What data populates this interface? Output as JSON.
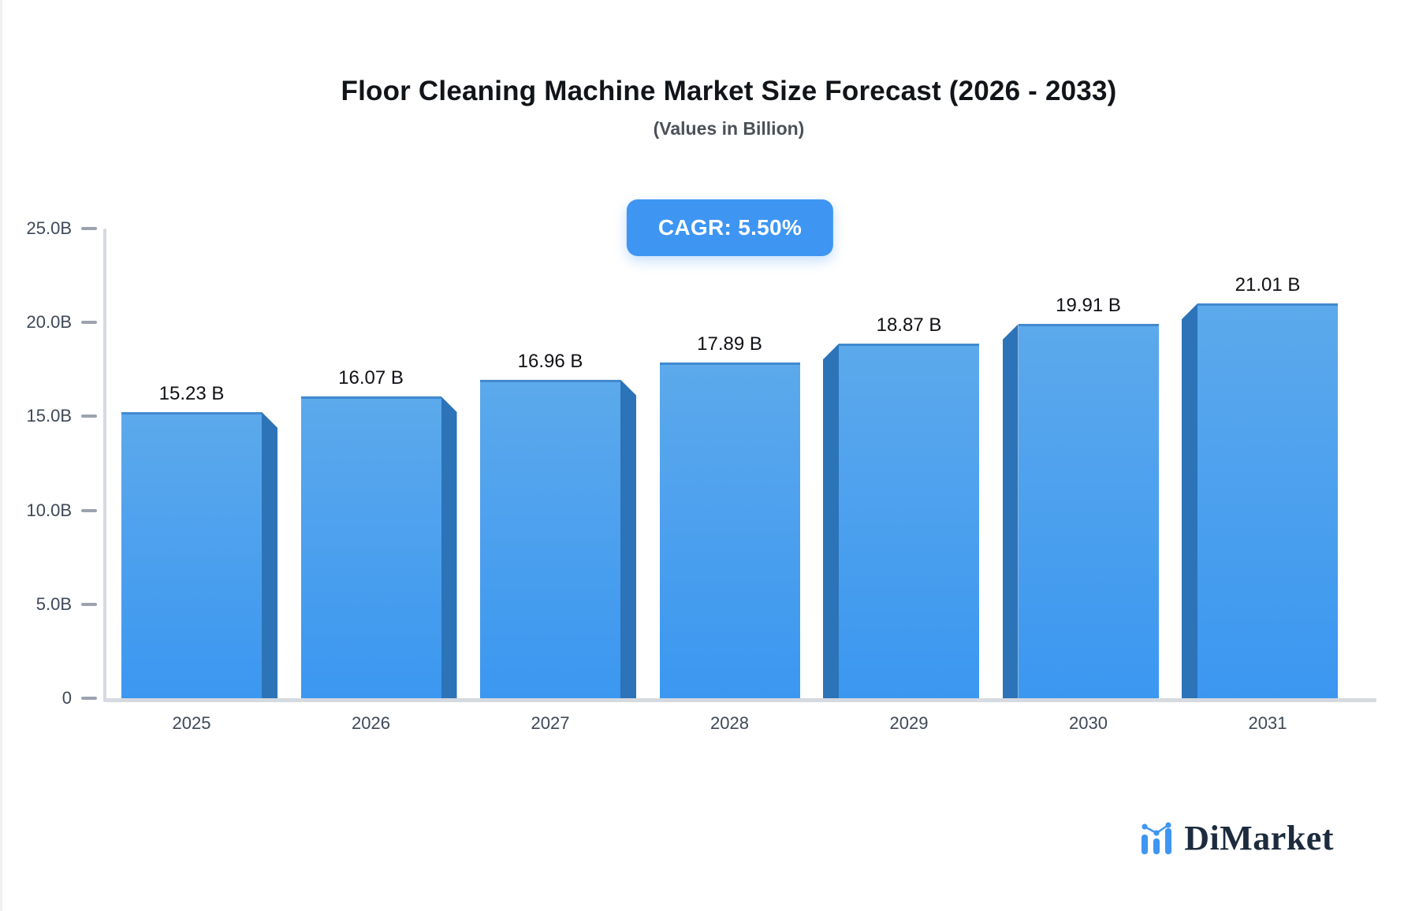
{
  "title": "Floor Cleaning Machine Market Size Forecast (2026 - 2033)",
  "subtitle": "(Values in Billion)",
  "cagr_badge": "CAGR: 5.50%",
  "chart_data": {
    "type": "bar",
    "categories": [
      "2025",
      "2026",
      "2027",
      "2028",
      "2029",
      "2030",
      "2031"
    ],
    "values": [
      15.23,
      16.07,
      16.96,
      17.89,
      18.87,
      19.91,
      21.01
    ],
    "value_labels": [
      "15.23 B",
      "16.07 B",
      "16.96 B",
      "17.89 B",
      "18.87 B",
      "19.91 B",
      "21.01 B"
    ],
    "title": "Floor Cleaning Machine Market Size Forecast (2026 - 2033)",
    "subtitle": "(Values in Billion)",
    "xlabel": "",
    "ylabel": "",
    "ylim": [
      0,
      25
    ],
    "yticks": [
      {
        "value": 25,
        "label": "25.0B"
      },
      {
        "value": 20,
        "label": "20.0B"
      },
      {
        "value": 15,
        "label": "15.0B"
      },
      {
        "value": 10,
        "label": "10.0B"
      },
      {
        "value": 5,
        "label": "5.0B"
      },
      {
        "value": 0,
        "label": "0"
      }
    ],
    "grid": false,
    "legend": "none",
    "bar_style": "pseudo-3d",
    "annotation": "CAGR: 5.50%"
  },
  "logo": {
    "text": "DiMarket",
    "icon": "bar-line-chart-icon"
  },
  "colors": {
    "accent": "#3e96f2",
    "badge_text": "#ffffff",
    "bar_face_top": "#5ca9ec",
    "bar_face_bottom": "#3b97f0",
    "bar_side": "#2c73b7",
    "bar_top_edge": "#4289cf",
    "axis_line": "#d5d9e0",
    "tick": "#9ca3af",
    "axis_label": "#3e4857",
    "value_label": "#0f1115",
    "title": "#111418",
    "subtitle": "#4b5158",
    "logo_navy": "#1c2b3e"
  }
}
